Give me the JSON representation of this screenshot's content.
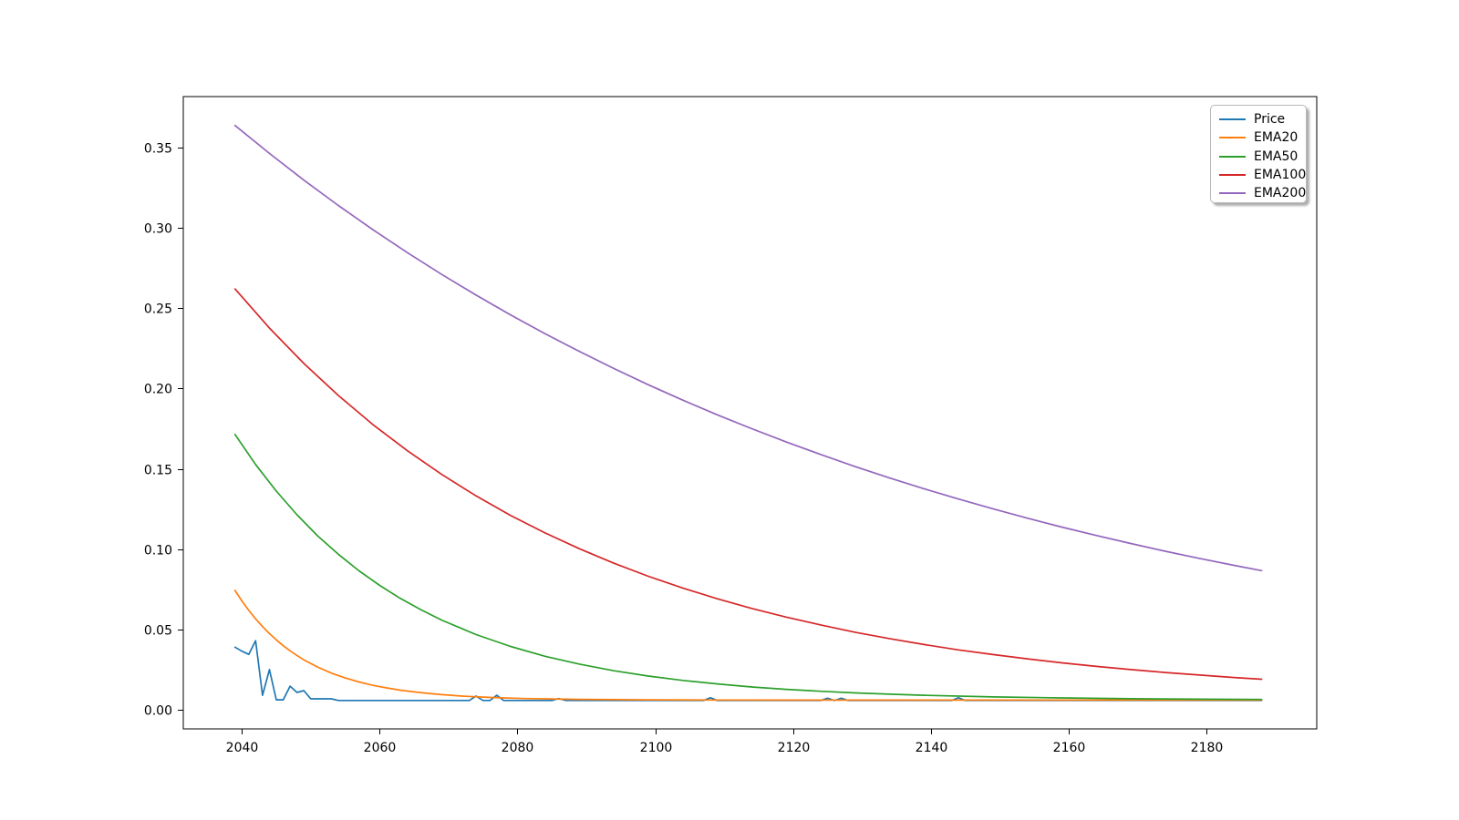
{
  "chart_data": {
    "type": "line",
    "title": "",
    "xlabel": "",
    "ylabel": "",
    "grid": false,
    "xlim": [
      2031.5,
      2196
    ],
    "ylim": [
      -0.0119,
      0.3817
    ],
    "x_ticks": [
      2040,
      2060,
      2080,
      2100,
      2120,
      2140,
      2160,
      2180
    ],
    "y_ticks": [
      0.0,
      0.05,
      0.1,
      0.15,
      0.2,
      0.25,
      0.3,
      0.35
    ],
    "y_tick_labels": [
      "0.00",
      "0.05",
      "0.10",
      "0.15",
      "0.20",
      "0.25",
      "0.30",
      "0.35"
    ],
    "legend": {
      "position": "upper-right",
      "entries": [
        "Price",
        "EMA20",
        "EMA50",
        "EMA100",
        "EMA200"
      ]
    },
    "series": [
      {
        "name": "Price",
        "color": "#1f77b4",
        "points": [
          [
            2039,
            0.039
          ],
          [
            2040,
            0.0365
          ],
          [
            2041,
            0.0345
          ],
          [
            2042,
            0.043
          ],
          [
            2043,
            0.009
          ],
          [
            2044,
            0.025
          ],
          [
            2045,
            0.0062
          ],
          [
            2046,
            0.0062
          ],
          [
            2047,
            0.0147
          ],
          [
            2048,
            0.0108
          ],
          [
            2049,
            0.0119
          ],
          [
            2050,
            0.0068
          ],
          [
            2053,
            0.0068
          ],
          [
            2054,
            0.0058
          ],
          [
            2073,
            0.0058
          ],
          [
            2074,
            0.0085
          ],
          [
            2075,
            0.0058
          ],
          [
            2076,
            0.0058
          ],
          [
            2077,
            0.009
          ],
          [
            2078,
            0.0058
          ],
          [
            2085,
            0.0058
          ],
          [
            2086,
            0.007
          ],
          [
            2087,
            0.0058
          ],
          [
            2107,
            0.0058
          ],
          [
            2108,
            0.0075
          ],
          [
            2109,
            0.0058
          ],
          [
            2124,
            0.0058
          ],
          [
            2125,
            0.0072
          ],
          [
            2126,
            0.0058
          ],
          [
            2127,
            0.0072
          ],
          [
            2128,
            0.0058
          ],
          [
            2143,
            0.0058
          ],
          [
            2144,
            0.0075
          ],
          [
            2145,
            0.0058
          ],
          [
            2188,
            0.0058
          ]
        ]
      },
      {
        "name": "EMA20",
        "color": "#ff7f0e",
        "points": [
          [
            2039,
            0.0743
          ],
          [
            2040,
            0.0678
          ],
          [
            2041,
            0.0619
          ],
          [
            2042,
            0.0566
          ],
          [
            2043,
            0.0518
          ],
          [
            2044,
            0.0474
          ],
          [
            2045,
            0.0435
          ],
          [
            2046,
            0.0399
          ],
          [
            2047,
            0.0367
          ],
          [
            2048,
            0.0338
          ],
          [
            2049,
            0.0311
          ],
          [
            2051,
            0.0266
          ],
          [
            2053,
            0.0228
          ],
          [
            2055,
            0.0198
          ],
          [
            2057,
            0.0173
          ],
          [
            2059,
            0.0152
          ],
          [
            2061,
            0.0136
          ],
          [
            2063,
            0.0122
          ],
          [
            2065,
            0.0111
          ],
          [
            2067,
            0.0102
          ],
          [
            2069,
            0.0094
          ],
          [
            2072,
            0.0085
          ],
          [
            2075,
            0.0079
          ],
          [
            2078,
            0.0074
          ],
          [
            2081,
            0.007
          ],
          [
            2084,
            0.0068
          ],
          [
            2089,
            0.0065
          ],
          [
            2094,
            0.0063
          ],
          [
            2099,
            0.0062
          ],
          [
            2109,
            0.0061
          ],
          [
            2119,
            0.006
          ],
          [
            2188,
            0.006
          ]
        ]
      },
      {
        "name": "EMA50",
        "color": "#2ca02c",
        "points": [
          [
            2039,
            0.1714
          ],
          [
            2042,
            0.1527
          ],
          [
            2045,
            0.1361
          ],
          [
            2048,
            0.1214
          ],
          [
            2051,
            0.1083
          ],
          [
            2054,
            0.0968
          ],
          [
            2057,
            0.0865
          ],
          [
            2060,
            0.0774
          ],
          [
            2063,
            0.0693
          ],
          [
            2066,
            0.0622
          ],
          [
            2069,
            0.0558
          ],
          [
            2074,
            0.0468
          ],
          [
            2079,
            0.0394
          ],
          [
            2084,
            0.0333
          ],
          [
            2089,
            0.0284
          ],
          [
            2094,
            0.0243
          ],
          [
            2099,
            0.021
          ],
          [
            2104,
            0.0183
          ],
          [
            2109,
            0.0161
          ],
          [
            2114,
            0.0142
          ],
          [
            2119,
            0.0127
          ],
          [
            2124,
            0.0115
          ],
          [
            2129,
            0.0105
          ],
          [
            2134,
            0.0097
          ],
          [
            2139,
            0.009
          ],
          [
            2149,
            0.008
          ],
          [
            2159,
            0.0074
          ],
          [
            2169,
            0.0069
          ],
          [
            2179,
            0.0066
          ],
          [
            2188,
            0.0064
          ]
        ]
      },
      {
        "name": "EMA100",
        "color": "#d62728",
        "points": [
          [
            2039,
            0.262
          ],
          [
            2044,
            0.2376
          ],
          [
            2049,
            0.2156
          ],
          [
            2054,
            0.1957
          ],
          [
            2059,
            0.1776
          ],
          [
            2064,
            0.1613
          ],
          [
            2069,
            0.1465
          ],
          [
            2074,
            0.1331
          ],
          [
            2079,
            0.121
          ],
          [
            2084,
            0.1101
          ],
          [
            2089,
            0.1002
          ],
          [
            2094,
            0.0912
          ],
          [
            2099,
            0.0831
          ],
          [
            2104,
            0.0758
          ],
          [
            2109,
            0.0691
          ],
          [
            2114,
            0.0631
          ],
          [
            2119,
            0.0577
          ],
          [
            2124,
            0.0528
          ],
          [
            2129,
            0.0483
          ],
          [
            2134,
            0.0443
          ],
          [
            2139,
            0.0406
          ],
          [
            2144,
            0.0373
          ],
          [
            2149,
            0.0344
          ],
          [
            2154,
            0.0317
          ],
          [
            2159,
            0.0292
          ],
          [
            2164,
            0.027
          ],
          [
            2169,
            0.025
          ],
          [
            2174,
            0.0232
          ],
          [
            2179,
            0.0216
          ],
          [
            2184,
            0.0201
          ],
          [
            2188,
            0.019
          ]
        ]
      },
      {
        "name": "EMA200",
        "color": "#9467bd",
        "points": [
          [
            2039,
            0.3637
          ],
          [
            2044,
            0.3463
          ],
          [
            2049,
            0.3297
          ],
          [
            2054,
            0.3139
          ],
          [
            2059,
            0.2989
          ],
          [
            2064,
            0.2846
          ],
          [
            2069,
            0.271
          ],
          [
            2074,
            0.2581
          ],
          [
            2079,
            0.2458
          ],
          [
            2084,
            0.2341
          ],
          [
            2089,
            0.223
          ],
          [
            2094,
            0.2124
          ],
          [
            2099,
            0.2023
          ],
          [
            2104,
            0.1927
          ],
          [
            2109,
            0.1836
          ],
          [
            2114,
            0.175
          ],
          [
            2119,
            0.1667
          ],
          [
            2124,
            0.1589
          ],
          [
            2129,
            0.1514
          ],
          [
            2134,
            0.1443
          ],
          [
            2139,
            0.1376
          ],
          [
            2144,
            0.1312
          ],
          [
            2149,
            0.1251
          ],
          [
            2154,
            0.1193
          ],
          [
            2159,
            0.1137
          ],
          [
            2164,
            0.1085
          ],
          [
            2169,
            0.1035
          ],
          [
            2174,
            0.0987
          ],
          [
            2179,
            0.0942
          ],
          [
            2184,
            0.0899
          ],
          [
            2188,
            0.0866
          ]
        ]
      }
    ]
  }
}
